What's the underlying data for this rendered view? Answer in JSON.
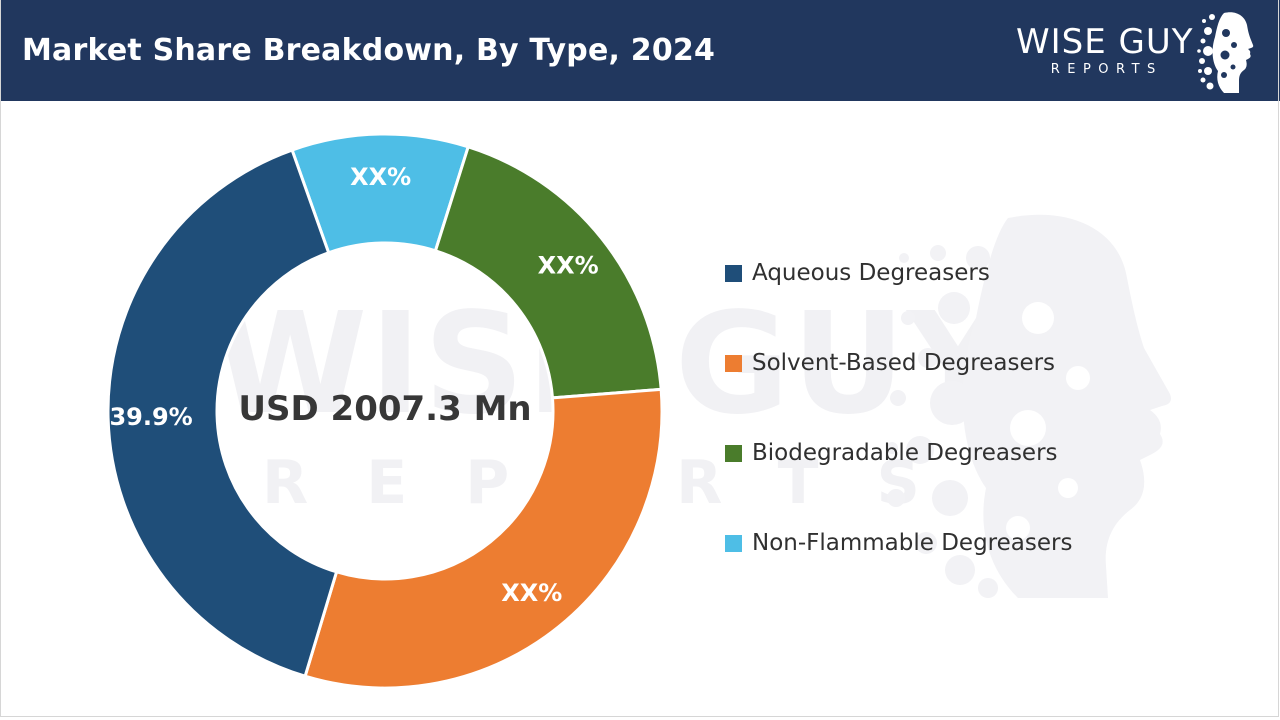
{
  "header": {
    "title": "Market Share Breakdown, By Type, 2024",
    "bg_color": "#21375E",
    "logo_line1": "WISE GUY",
    "logo_line2": "REPORTS"
  },
  "watermark": {
    "line1": "WISE GUY",
    "line2": "REPORTS"
  },
  "chart_data": {
    "type": "pie",
    "subtype": "donut",
    "title": "Market Share Breakdown, By Type, 2024",
    "center_label": "USD 2007.3 Mn",
    "legend_position": "right",
    "start_angle_deg": -19.6,
    "segments": [
      {
        "name": "Aqueous Degreasers",
        "color": "#1F4E79",
        "slice_label": "39.9%",
        "value_pct": 39.9
      },
      {
        "name": "Solvent-Based Degreasers",
        "color": "#ED7D31",
        "slice_label": "XX%",
        "value_pct": 30.9
      },
      {
        "name": "Biodegradable Degreasers",
        "color": "#4A7C2B",
        "slice_label": "XX%",
        "value_pct": 18.9
      },
      {
        "name": "Non-Flammable Degreasers",
        "color": "#4EBEE6",
        "slice_label": "XX%",
        "value_pct": 10.3
      }
    ]
  }
}
